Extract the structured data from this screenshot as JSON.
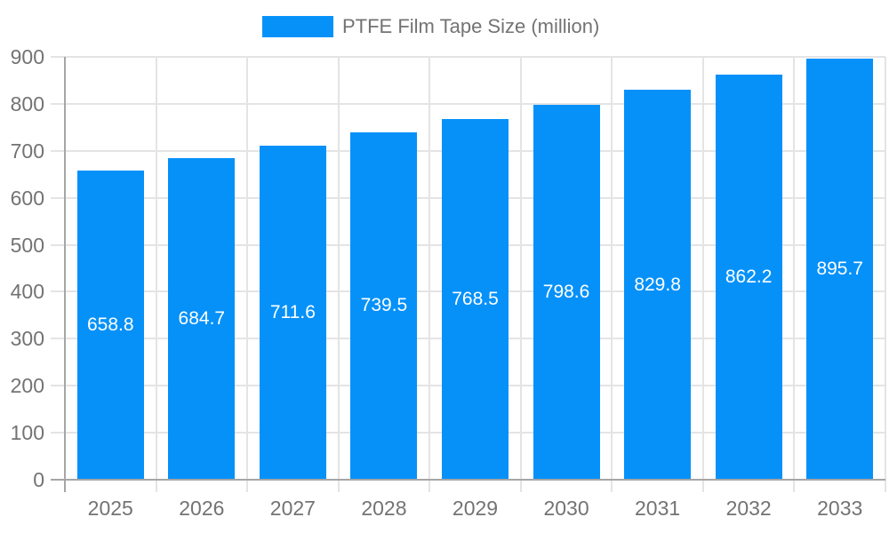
{
  "chart_data": {
    "type": "bar",
    "categories": [
      "2025",
      "2026",
      "2027",
      "2028",
      "2029",
      "2030",
      "2031",
      "2032",
      "2033"
    ],
    "series": [
      {
        "name": "PTFE Film Tape Size (million)",
        "values": [
          658.8,
          684.7,
          711.6,
          739.5,
          768.5,
          798.6,
          829.8,
          862.2,
          895.7
        ]
      }
    ],
    "title": "",
    "xlabel": "",
    "ylabel": "",
    "ylim": [
      0,
      900
    ],
    "ytick_step": 100,
    "yticks": [
      "0",
      "100",
      "200",
      "300",
      "400",
      "500",
      "600",
      "700",
      "800",
      "900"
    ],
    "grid": true,
    "legend_position": "top-center",
    "value_label_style": "inside-center-white",
    "colors": {
      "bar": "#0691f9",
      "grid": "#e4e4e4",
      "axis": "#a6a6a6",
      "text": "#737373",
      "value_label": "#ffffff",
      "background": "#ffffff"
    }
  }
}
